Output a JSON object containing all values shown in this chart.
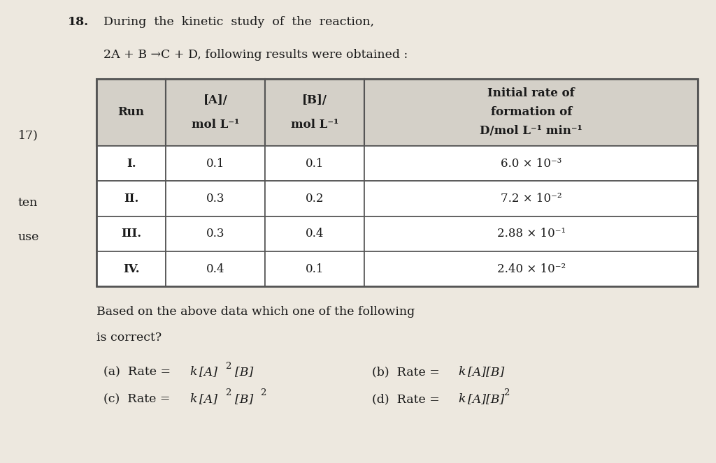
{
  "bg_color": "#ede8df",
  "table_bg": "#ffffff",
  "header_bg": "#d4d0c8",
  "text_color": "#1a1a1a",
  "border_color": "#555555",
  "q_number": "18.",
  "q_line1": "During  the  kinetic  study  of  the  reaction,",
  "q_line2": "2A + B →C + D, following results were obtained :",
  "col_headers_line1": [
    "Run",
    "[A]/",
    "[B]/",
    "Initial rate of"
  ],
  "col_headers_line2": [
    "",
    "mol L⁻¹",
    "mol L⁻¹",
    "formation of"
  ],
  "col_headers_line3": [
    "",
    "",
    "",
    "D/mol L⁻¹ min⁻¹"
  ],
  "rows": [
    [
      "I.",
      "0.1",
      "0.1",
      "6.0 × 10⁻³"
    ],
    [
      "II.",
      "0.3",
      "0.2",
      "7.2 × 10⁻²"
    ],
    [
      "III.",
      "0.3",
      "0.4",
      "2.88 × 10⁻¹"
    ],
    [
      "IV.",
      "0.4",
      "0.1",
      "2.40 × 10⁻²"
    ]
  ],
  "below_line1": "Based on the above data which one of the following",
  "below_line2": "is correct?",
  "opt_a": "(a)  Rate = k[A]",
  "opt_a_sup": "2",
  "opt_a_rest": "[B]",
  "opt_b": "(b)  Rate = k[A][B]",
  "opt_c": "(c)  Rate = k[A]",
  "opt_c_sup": "2",
  "opt_c_rest": "[B]",
  "opt_c_sup2": "2",
  "opt_d": "(d)  Rate = k[A][B]",
  "opt_d_sup": "2",
  "side_labels": [
    [
      "17)",
      0.72
    ],
    [
      "ten",
      0.575
    ],
    [
      "use",
      0.5
    ]
  ],
  "font_size": 12.5,
  "table_font": 12.0
}
